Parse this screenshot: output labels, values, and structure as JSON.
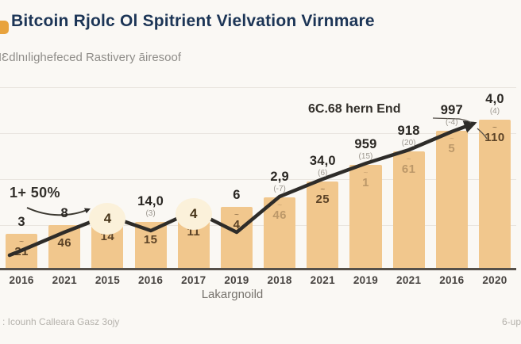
{
  "header": {
    "title": "Bitcoin Rjolc Ol Spitrient Vielvation Virnmare",
    "subtitle": "IƐdlnılighefeced Rastivery āiresoof"
  },
  "chart_data": {
    "type": "bar",
    "categories": [
      "2016",
      "2021",
      "2015",
      "2016",
      "2017",
      "2019",
      "2018",
      "2021",
      "2019",
      "2021",
      "2016",
      "2020"
    ],
    "bars": [
      {
        "top_label": "3",
        "sub_label": "",
        "inner_label": "21",
        "height": 43,
        "circled": false,
        "inner_faint": false
      },
      {
        "top_label": "8",
        "sub_label": "",
        "inner_label": "46",
        "height": 54,
        "circled": false,
        "inner_faint": false
      },
      {
        "top_label": "4",
        "sub_label": "",
        "inner_label": "14",
        "height": 62,
        "circled": true,
        "inner_faint": false
      },
      {
        "top_label": "14,0",
        "sub_label": "(3)",
        "inner_label": "15",
        "height": 58,
        "circled": false,
        "inner_faint": false
      },
      {
        "top_label": "4",
        "sub_label": "",
        "inner_label": "11",
        "height": 68,
        "circled": true,
        "inner_faint": false
      },
      {
        "top_label": "6",
        "sub_label": "",
        "inner_label": "4",
        "height": 77,
        "circled": false,
        "inner_faint": false
      },
      {
        "top_label": "2,9",
        "sub_label": "(-7)",
        "inner_label": "46",
        "height": 89,
        "circled": false,
        "inner_faint": true
      },
      {
        "top_label": "34,0",
        "sub_label": "(6)",
        "inner_label": "25",
        "height": 109,
        "circled": false,
        "inner_faint": false
      },
      {
        "top_label": "959",
        "sub_label": "(15)",
        "inner_label": "1",
        "height": 130,
        "circled": false,
        "inner_faint": true
      },
      {
        "top_label": "918",
        "sub_label": "(20)",
        "inner_label": "61",
        "height": 147,
        "circled": false,
        "inner_faint": true
      },
      {
        "top_label": "997",
        "sub_label": "(-4)",
        "inner_label": "5",
        "height": 173,
        "circled": false,
        "inner_faint": true
      },
      {
        "top_label": "4,0",
        "sub_label": "(4)",
        "inner_label": "110",
        "height": 187,
        "circled": false,
        "inner_faint": false
      }
    ],
    "line": {
      "arrow_end": true,
      "points": [
        [
          12,
          230
        ],
        [
          27,
          224
        ],
        [
          81,
          201
        ],
        [
          135,
          180
        ],
        [
          190,
          199
        ],
        [
          244,
          174
        ],
        [
          298,
          201
        ],
        [
          352,
          156
        ],
        [
          406,
          134
        ],
        [
          461,
          114
        ],
        [
          515,
          97
        ],
        [
          569,
          74
        ],
        [
          596,
          64
        ]
      ]
    },
    "xlabel": "Lakargnoild",
    "ylabel": "",
    "legend": "none",
    "grid": "horizontal",
    "annotations": {
      "growth": "1+ 50%",
      "end": "6C.68 hern End"
    },
    "approx_mark": "~",
    "colors": {
      "bar": "#f1c78d",
      "line": "#2e2c29",
      "circle": "#fbf1da",
      "accent": "#e8a33d",
      "title": "#1c3556"
    }
  },
  "footer": {
    "left": ": Icounh Calleara Gasz 3ojy",
    "right": "6-up"
  }
}
